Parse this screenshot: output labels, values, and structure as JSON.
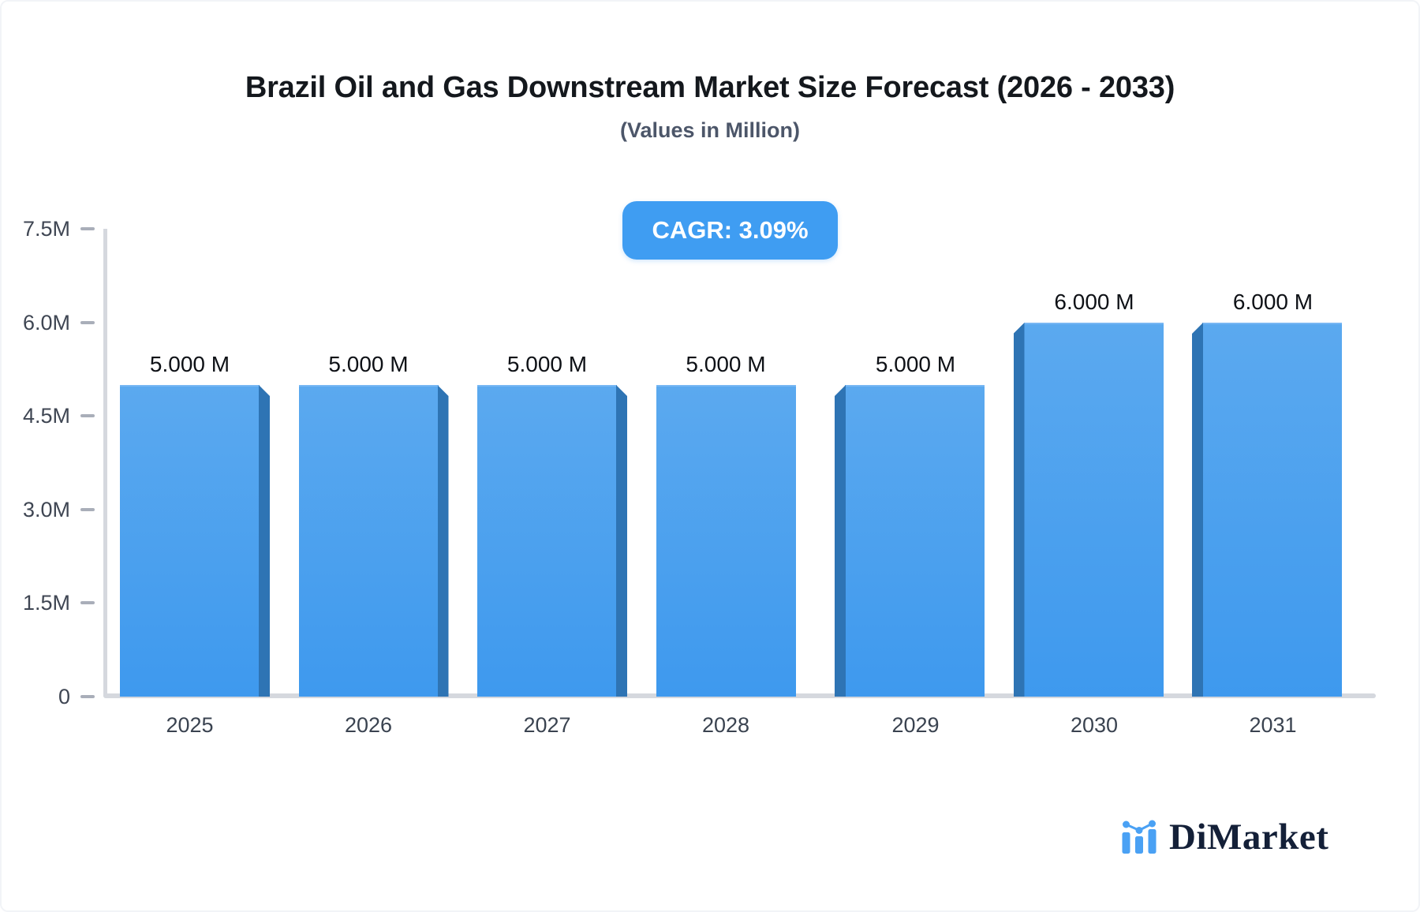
{
  "header": {
    "cagr_badge": "CAGR: 3.09%"
  },
  "chart_data": {
    "type": "bar",
    "title": "Brazil Oil and Gas Downstream Market Size Forecast (2026 - 2033)",
    "subtitle": "(Values in Million)",
    "annotation_badge": "CAGR: 3.09%",
    "cagr_percent": 3.09,
    "unit": "millions",
    "categories": [
      "2025",
      "2026",
      "2027",
      "2028",
      "2029",
      "2030",
      "2031"
    ],
    "values": [
      5.0,
      5.0,
      5.0,
      5.0,
      5.0,
      6.0,
      6.0
    ],
    "bar_labels": [
      "5.000 M",
      "5.000 M",
      "5.000 M",
      "5.000 M",
      "5.000 M",
      "6.000 M",
      "6.000 M"
    ],
    "ylim": [
      0,
      7.5
    ],
    "yticks": [
      {
        "value": 7.5,
        "label": "7.5M"
      },
      {
        "value": 6.0,
        "label": "6.0M"
      },
      {
        "value": 4.5,
        "label": "4.5M"
      },
      {
        "value": 3.0,
        "label": "3.0M"
      },
      {
        "value": 1.5,
        "label": "1.5M"
      },
      {
        "value": 0,
        "label": "0"
      }
    ],
    "xlabel": "",
    "ylabel": "",
    "grid": false,
    "legend": false
  },
  "branding": {
    "logo_text": "DiMarket"
  },
  "colors": {
    "badge_bg": "#3f9df2",
    "bar_top": "#5ba9ef",
    "bar_bottom": "#3e99ee",
    "bar_side": "#2e74b4",
    "axis": "#d5d8de",
    "tick_mark": "#a9aeb9",
    "logo_blue": "#4aa1f4",
    "logo_text": "#142038",
    "title_text": "#14181d",
    "subtitle_text": "#4c5669"
  }
}
